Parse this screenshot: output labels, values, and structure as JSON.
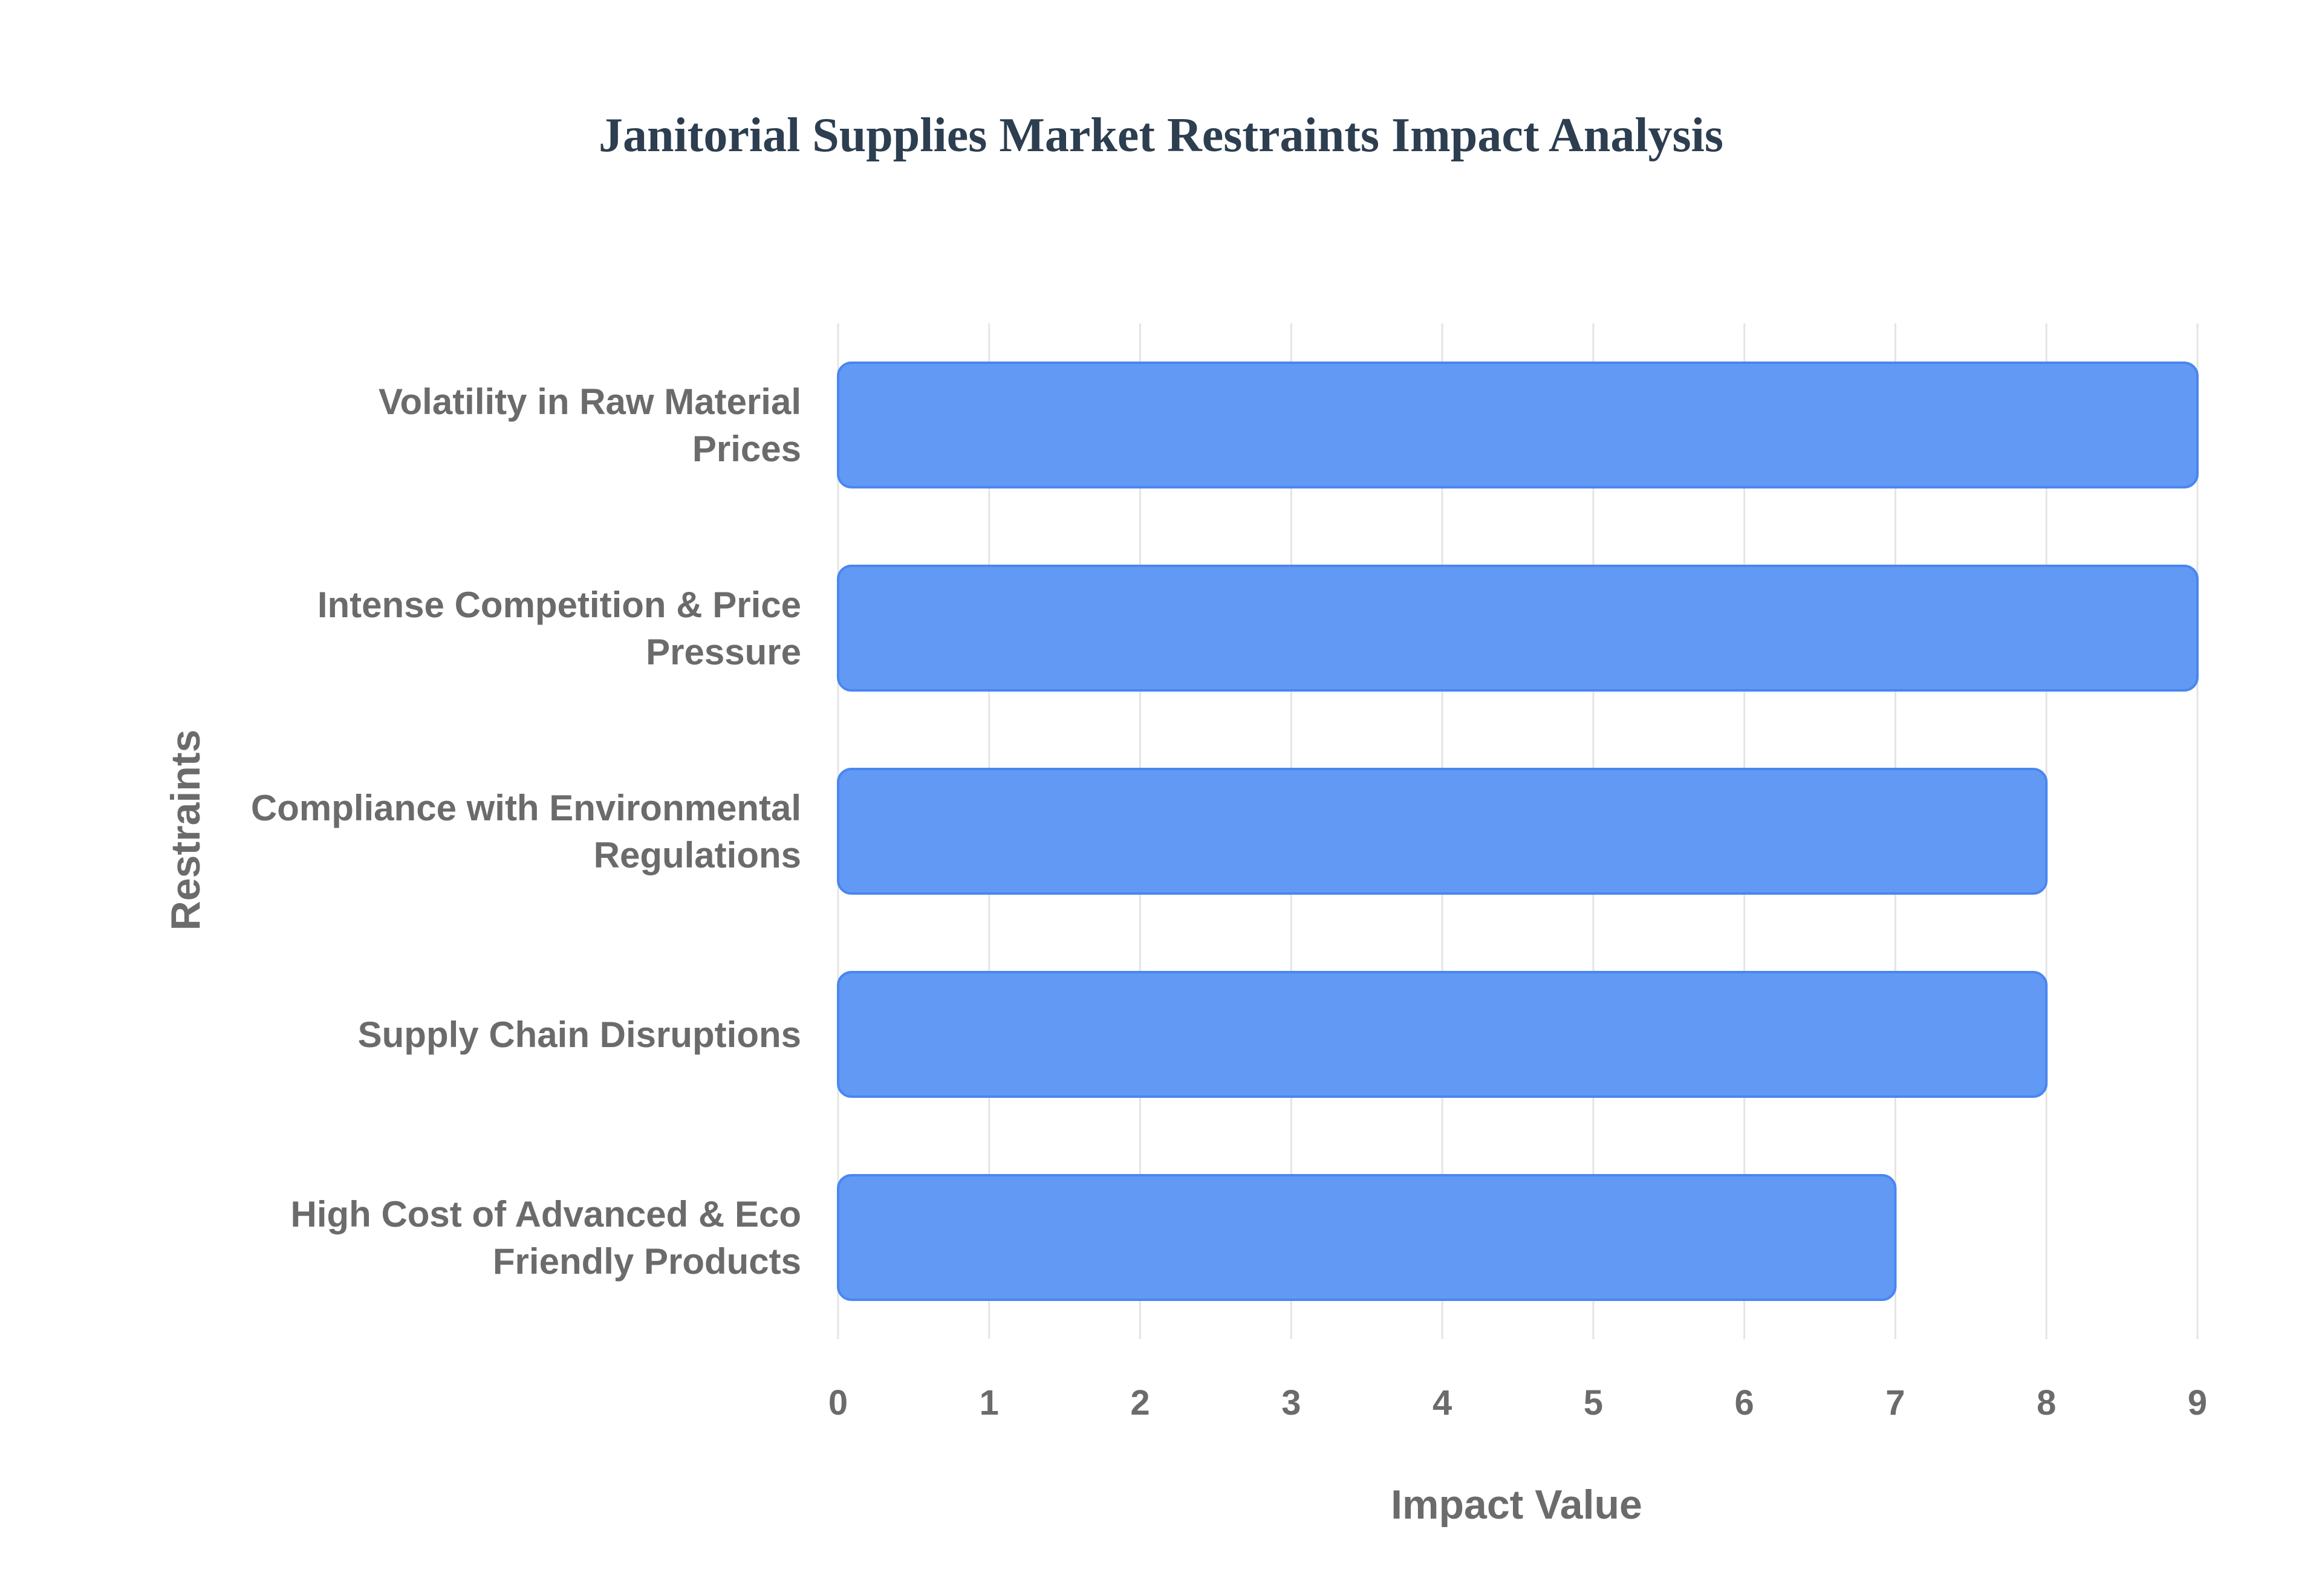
{
  "chart_data": {
    "type": "bar",
    "orientation": "horizontal",
    "title": "Janitorial Supplies Market Restraints Impact Analysis",
    "xlabel": "Impact Value",
    "ylabel": "Restraints",
    "categories": [
      [
        "Volatility in Raw Material",
        "Prices"
      ],
      [
        "Intense Competition & Price",
        "Pressure"
      ],
      [
        "Compliance with Environmental",
        "Regulations"
      ],
      [
        "Supply Chain Disruptions"
      ],
      [
        "High Cost of Advanced & Eco",
        "Friendly Products"
      ]
    ],
    "values": [
      9,
      9,
      8,
      8,
      7
    ],
    "xlim": [
      0,
      9
    ],
    "xticks": [
      "0",
      "1",
      "2",
      "3",
      "4",
      "5",
      "6",
      "7",
      "8",
      "9"
    ],
    "grid": true,
    "colors": {
      "bar_fill": "#6199f5",
      "bar_stroke": "#4a86ef",
      "title": "#2c3e50",
      "labels": "#6b6b6b",
      "grid": "#e4e4e4"
    }
  }
}
